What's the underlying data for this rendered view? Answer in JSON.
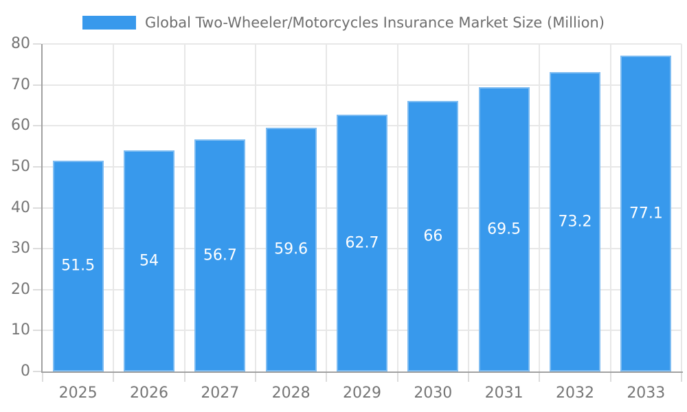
{
  "chart": {
    "legend_label": "Global Two-Wheeler/Motorcycles Insurance Market Size (Million)"
  },
  "colors": {
    "bar": "#3899ec",
    "grid": "#e7e7e7",
    "axis": "#a0a0a0",
    "tick": "#dcdcdc",
    "axis_text": "#757575",
    "legend_text": "#6e6e6e",
    "value_text": "#ffffff",
    "background": "#ffffff"
  },
  "chart_data": {
    "type": "bar",
    "title": "Global Two-Wheeler/Motorcycles Insurance Market Size (Million)",
    "categories": [
      "2025",
      "2026",
      "2027",
      "2028",
      "2029",
      "2030",
      "2031",
      "2032",
      "2033"
    ],
    "values": [
      51.5,
      54,
      56.7,
      59.6,
      62.7,
      66,
      69.5,
      73.2,
      77.1
    ],
    "value_labels": [
      "51.5",
      "54",
      "56.7",
      "59.6",
      "62.7",
      "66",
      "69.5",
      "73.2",
      "77.1"
    ],
    "xlabel": "",
    "ylabel": "",
    "ylim": [
      0,
      80
    ],
    "yticks": [
      0,
      10,
      20,
      30,
      40,
      50,
      60,
      70,
      80
    ],
    "grid": true,
    "legend_position": "top",
    "value_label_position": "center-of-bar"
  }
}
